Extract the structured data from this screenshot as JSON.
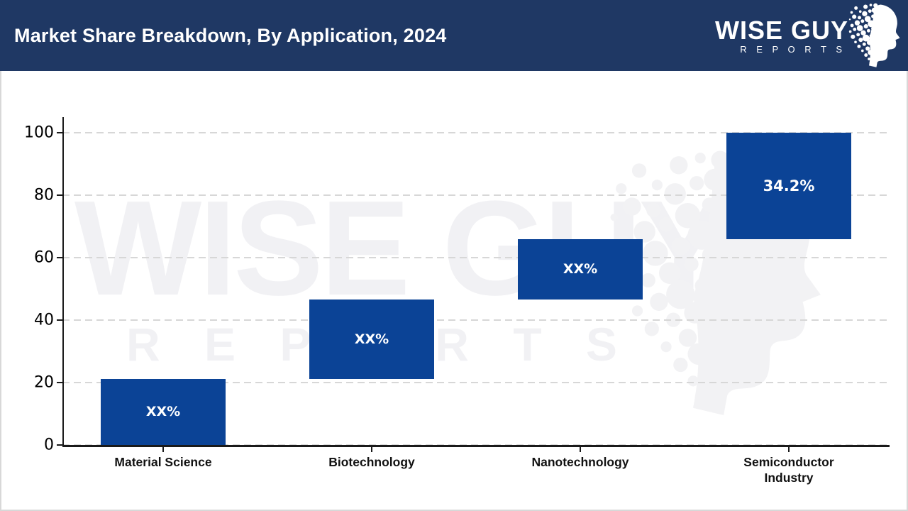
{
  "header": {
    "title": "Market Share Breakdown, By Application, 2024",
    "logo": {
      "brand": "WISE GUY",
      "sub": "R E P O R T S",
      "icon": "dotted-face-profile-icon"
    }
  },
  "watermark": {
    "brand": "WISE GUY",
    "sub": "R E P O R T S",
    "icon": "dotted-face-profile-icon"
  },
  "chart_data": {
    "type": "bar",
    "subtype": "waterfall",
    "title": "Market Share Breakdown, By Application, 2024",
    "categories": [
      "Material Science",
      "Biotechnology",
      "Nanotechnology",
      "Semiconductor Industry"
    ],
    "segments": [
      {
        "category": "Material Science",
        "start": 0,
        "end": 21.2,
        "value": 21.2,
        "value_label": "XX%"
      },
      {
        "category": "Biotechnology",
        "start": 21.2,
        "end": 46.7,
        "value": 25.5,
        "value_label": "XX%"
      },
      {
        "category": "Nanotechnology",
        "start": 46.7,
        "end": 65.8,
        "value": 19.1,
        "value_label": "XX%"
      },
      {
        "category": "Semiconductor Industry",
        "start": 65.8,
        "end": 100,
        "value": 34.2,
        "value_label": "34.2%"
      }
    ],
    "xlabel": "",
    "ylabel": "",
    "yticks": [
      0,
      20,
      40,
      60,
      80,
      100
    ],
    "ylim": [
      0,
      105
    ],
    "grid": "horizontal-dashed",
    "legend": "none",
    "bar_color": "#0b4396",
    "bar_label_color": "#ffffff"
  },
  "colors": {
    "header_bg": "#1f3864",
    "bar": "#0b4396",
    "grid": "#d7d7d7",
    "axis": "#1a1a1a",
    "text": "#111111",
    "watermark": "#f1f1f4",
    "card_border": "#d8d8d8"
  }
}
